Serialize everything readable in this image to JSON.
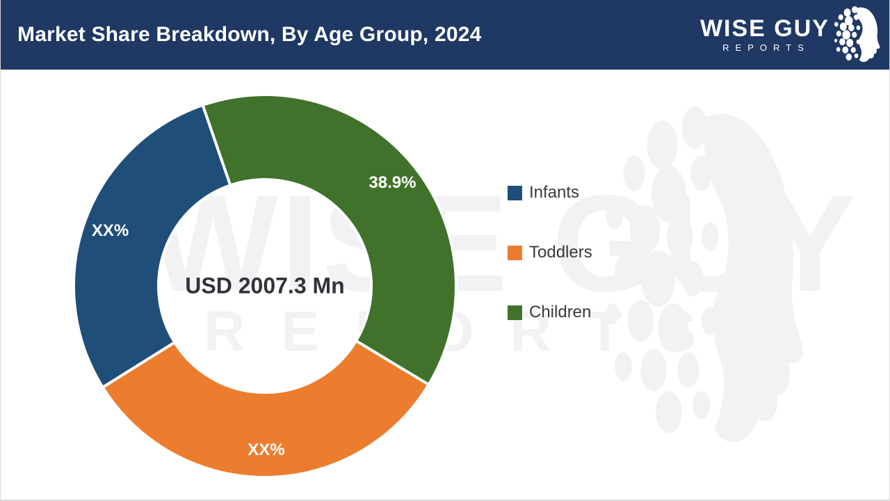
{
  "header": {
    "title": "Market Share Breakdown, By Age Group, 2024",
    "logo": {
      "name": "WISE GUY",
      "sub": "REPORTS"
    }
  },
  "watermark": {
    "line1": "WISE GUY",
    "line2": "REPORTS"
  },
  "chart_data": {
    "type": "pie",
    "subtype": "donut",
    "title": "Market Share Breakdown, By Age Group, 2024",
    "center_label": "USD 2007.3 Mn",
    "start_angle_deg": -19,
    "segments": [
      {
        "name": "Children",
        "value": 38.9,
        "display_label": "38.9%",
        "color": "#40722B"
      },
      {
        "name": "Toddlers",
        "value": 32.5,
        "display_label": "XX%",
        "color": "#EC7D2F"
      },
      {
        "name": "Infants",
        "value": 28.6,
        "display_label": "XX%",
        "color": "#1F4E79"
      }
    ],
    "legend": [
      {
        "label": "Infants",
        "color": "#1F4E79"
      },
      {
        "label": "Toddlers",
        "color": "#EC7D2F"
      },
      {
        "label": "Children",
        "color": "#40722B"
      }
    ],
    "legend_position": "right"
  },
  "colors": {
    "header_bg": "#1F3864",
    "watermark": "#F2F2F4",
    "page_border": "#D9D9D9"
  }
}
